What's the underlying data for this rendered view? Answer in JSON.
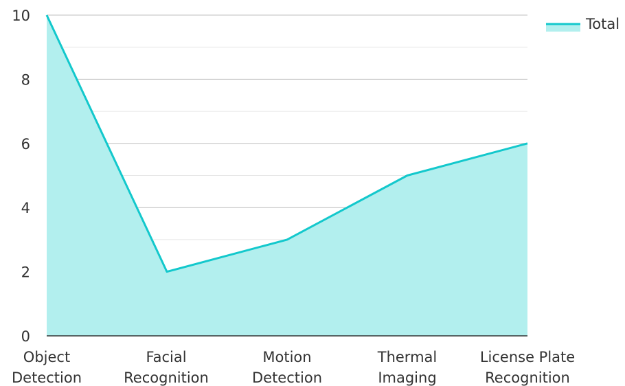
{
  "chart_data": {
    "type": "area",
    "categories": [
      [
        "Object",
        "Detection"
      ],
      [
        "Facial",
        "Recognition"
      ],
      [
        "Motion",
        "Detection"
      ],
      [
        "Thermal",
        "Imaging"
      ],
      [
        "License Plate",
        "Recognition"
      ]
    ],
    "series": [
      {
        "name": "Total",
        "values": [
          10,
          2,
          3,
          5,
          6
        ]
      }
    ],
    "y_ticks": [
      "0",
      "2",
      "4",
      "6",
      "8",
      "10"
    ],
    "ylim": [
      0,
      10
    ],
    "grid": true,
    "legend_position": "top-right",
    "colors": {
      "line": "#13c8cc",
      "fill": "#b2efee",
      "grid_major": "#bfbfbf",
      "grid_minor": "#e6e6e6"
    }
  }
}
